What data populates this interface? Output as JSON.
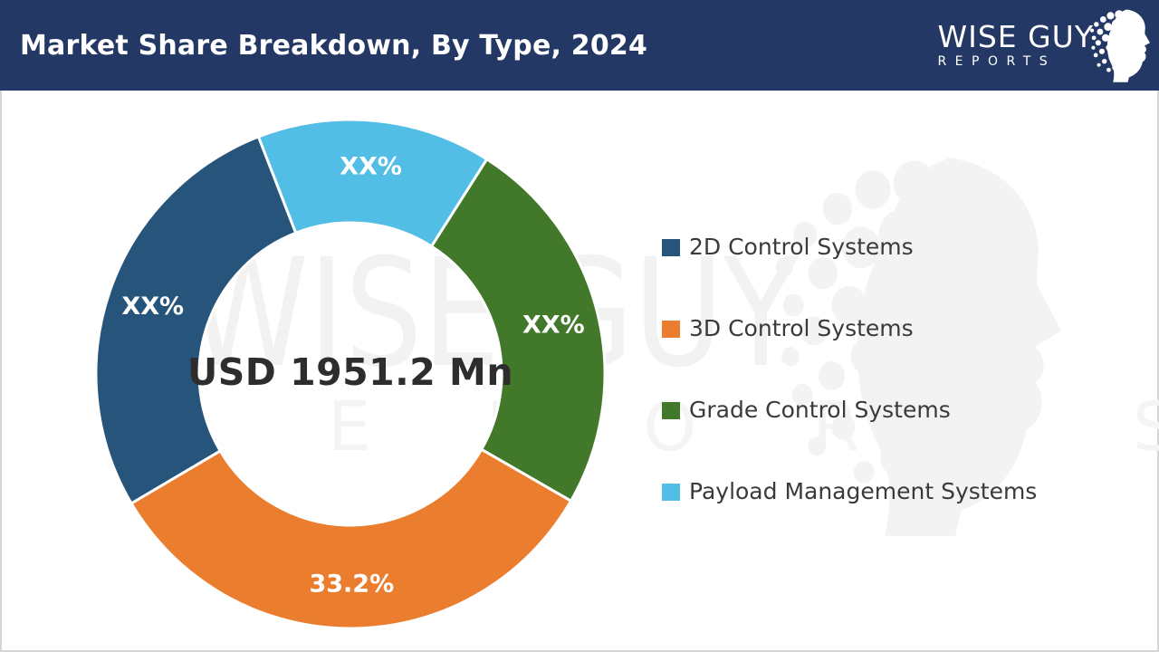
{
  "header": {
    "title": "Market Share Breakdown, By Type, 2024",
    "bg_color": "#233864",
    "logo": {
      "line1": "WISE GUY",
      "line2": "REPORTS"
    }
  },
  "chart_data": {
    "type": "pie",
    "subtype": "donut",
    "title": "Market Share Breakdown, By Type, 2024",
    "center_label": "USD 1951.2 Mn",
    "start_angle_deg": -21.2,
    "direction": "clockwise",
    "legend_position": "right",
    "segments": [
      {
        "name": "Payload Management Systems",
        "value_pct": 14.9,
        "display_label": "XX%",
        "color": "#52bee5"
      },
      {
        "name": "Grade Control Systems",
        "value_pct": 24.3,
        "display_label": "XX%",
        "color": "#41782a"
      },
      {
        "name": "3D Control Systems",
        "value_pct": 33.2,
        "display_label": "33.2%",
        "color": "#eb7d2e"
      },
      {
        "name": "2D Control Systems",
        "value_pct": 27.6,
        "display_label": "XX%",
        "color": "#27547a"
      }
    ],
    "geometry": {
      "outer_radius": 281,
      "inner_radius": 167,
      "label_radius": 231,
      "separator_color": "#ffffff"
    }
  },
  "legend": {
    "items": [
      {
        "label": "2D Control Systems",
        "color": "#27547a"
      },
      {
        "label": "3D Control Systems",
        "color": "#eb7d2e"
      },
      {
        "label": "Grade Control Systems",
        "color": "#41782a"
      },
      {
        "label": "Payload Management Systems",
        "color": "#52bee5"
      }
    ]
  },
  "watermark": {
    "line1": "WISE GUY",
    "line2": "R E P O R T S"
  }
}
